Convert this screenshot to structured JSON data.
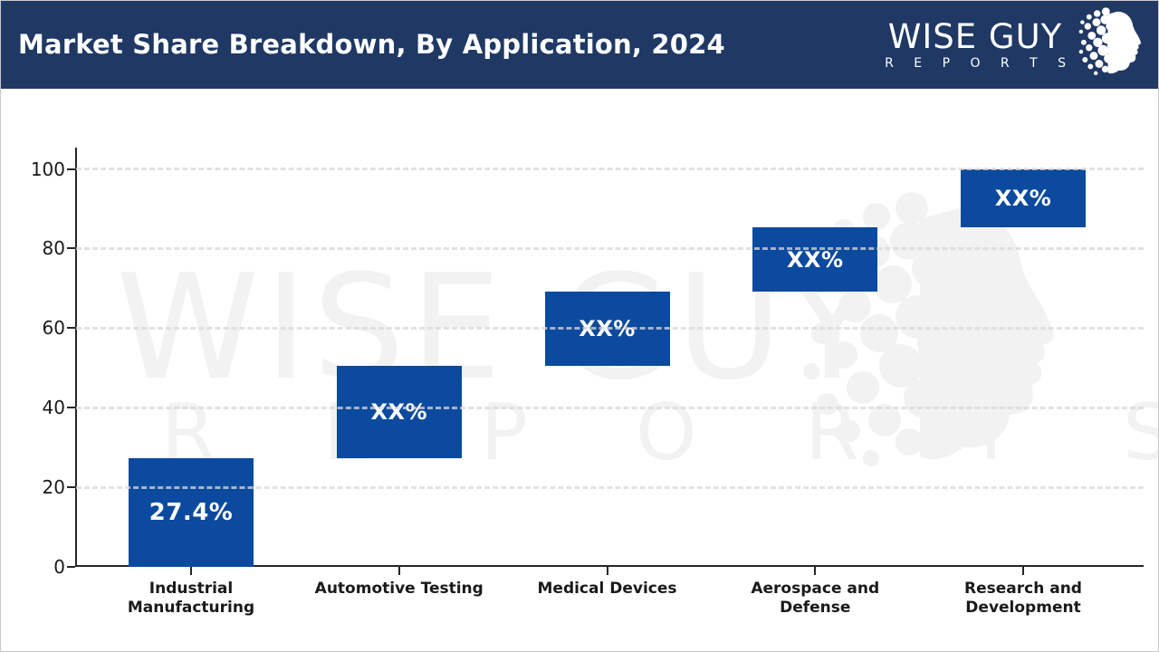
{
  "header": {
    "title": "Market Share Breakdown, By Application, 2024",
    "logo": {
      "line1": "WISE GUY",
      "line2": "R E P O R T S"
    }
  },
  "watermark": {
    "line1": "WISE GUY",
    "line2": "R E P O R T S"
  },
  "colors": {
    "header_bg": "#1f3864",
    "bar": "#0b4a9e",
    "bar_label": "#ffffff",
    "axis": "#262626",
    "tick_text": "#1a1a1a",
    "gridline": "#d9d9d9",
    "watermark": "#f2f2f2"
  },
  "chart_data": {
    "type": "waterfall",
    "title": "Market Share Breakdown, By Application, 2024",
    "categories": [
      "Industrial Manufacturing",
      "Automotive Testing",
      "Medical Devices",
      "Aerospace and Defense",
      "Research and Development"
    ],
    "category_lines": [
      [
        "Industrial",
        "Manufacturing"
      ],
      [
        "Automotive Testing"
      ],
      [
        "Medical Devices"
      ],
      [
        "Aerospace and",
        "Defense"
      ],
      [
        "Research and",
        "Development"
      ]
    ],
    "segments": [
      {
        "category": "Industrial Manufacturing",
        "start": 0,
        "end": 27.4,
        "label": "27.4%"
      },
      {
        "category": "Automotive Testing",
        "start": 27.4,
        "end": 50.6,
        "label": "XX%"
      },
      {
        "category": "Medical Devices",
        "start": 50.6,
        "end": 69.2,
        "label": "XX%"
      },
      {
        "category": "Aerospace and Defense",
        "start": 69.2,
        "end": 85.3,
        "label": "XX%"
      },
      {
        "category": "Research and Development",
        "start": 85.3,
        "end": 100,
        "label": "XX%"
      }
    ],
    "yticks": [
      0,
      20,
      40,
      60,
      80,
      100
    ],
    "ylim": [
      0,
      105
    ],
    "xlabel": "",
    "ylabel": "",
    "grid": "horizontal-dashed",
    "legend": "none"
  }
}
